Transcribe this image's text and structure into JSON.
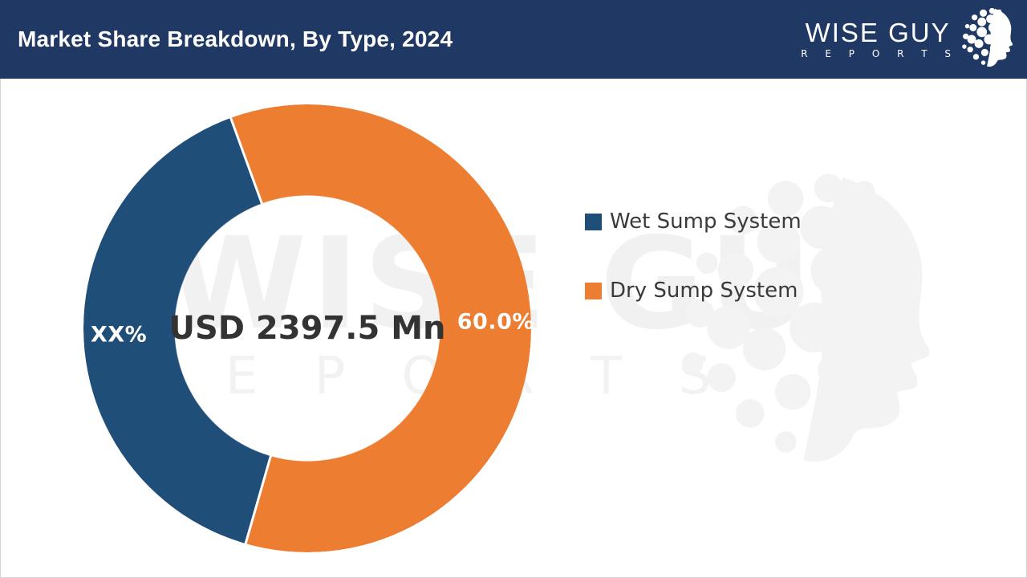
{
  "header": {
    "title": "Market Share Breakdown, By Type, 2024",
    "bg_color": "#1F3864",
    "logo": {
      "line1": "WISE GUY",
      "line2": "R E P O R T S"
    }
  },
  "watermark": {
    "line1": "WISE GUY",
    "line2": "R E P O R T S"
  },
  "chart_data": {
    "type": "pie",
    "subtype": "donut",
    "title": "Market Share Breakdown, By Type, 2024",
    "center_label": "USD 2397.5 Mn",
    "start_deg": 196,
    "hole_radius_px": 166,
    "outer_radius_px": 279,
    "legend_position": "right",
    "categories": [
      "Wet Sump System",
      "Dry Sump System"
    ],
    "slices": [
      {
        "name": "Wet Sump System",
        "pct": 40,
        "label": "XX%",
        "color": "#1F4E79"
      },
      {
        "name": "Dry Sump System",
        "pct": 60,
        "label": "60.0%",
        "color": "#ED7D31"
      }
    ]
  },
  "colors": {
    "header_bg": "#1F3864",
    "wet_sump_blue": "#1F4E79",
    "dry_sump_orange": "#ED7D31",
    "frame_border": "#d5d5d5",
    "center_text": "#333333",
    "legend_text": "#3a3a3a",
    "watermark_gray": "#f1f1f1"
  }
}
